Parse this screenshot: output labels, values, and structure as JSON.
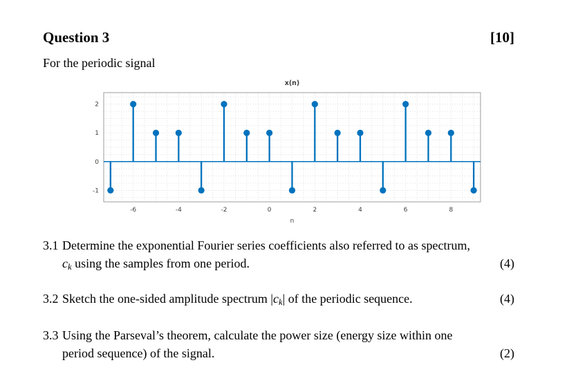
{
  "page": {
    "question_title": "Question 3",
    "question_marks": "[10]",
    "intro": "For the periodic signal"
  },
  "chart_data": {
    "type": "stem",
    "title": "x(n)",
    "xlabel": "n",
    "ylabel": "",
    "x": [
      -7,
      -6,
      -5,
      -4,
      -3,
      -2,
      -1,
      0,
      1,
      2,
      3,
      4,
      5,
      6,
      7,
      8,
      9
    ],
    "y": [
      -1,
      2,
      1,
      1,
      -1,
      2,
      1,
      1,
      -1,
      2,
      1,
      1,
      -1,
      2,
      1,
      1,
      -1
    ],
    "period": 4,
    "xlim": [
      -7.3,
      9.3
    ],
    "ylim": [
      -1.4,
      2.4
    ],
    "xticks": [
      -6,
      -4,
      -2,
      0,
      2,
      4,
      6,
      8
    ],
    "yticks": [
      -1,
      0,
      1,
      2
    ],
    "grid": "minor dotted grid on",
    "legend": "none",
    "stem_color": "#0072BD",
    "grid_color": "#d9d9d9",
    "box_color": "#9c9c9c"
  },
  "questions": {
    "q31": {
      "num": "3.1",
      "line1": "Determine the exponential Fourier series coefficients also referred to as spectrum,",
      "math_var": "c",
      "math_sub": "k",
      "line2_rest": " using the samples from one period.",
      "marks": "(4)"
    },
    "q32": {
      "num": "3.2",
      "pre": "Sketch the one-sided amplitude spectrum |",
      "math_var": "c",
      "math_sub": "k",
      "post": "| of the periodic sequence.",
      "marks": "(4)"
    },
    "q33": {
      "num": "3.3",
      "line1": "Using the Parseval’s theorem, calculate the power size (energy size within one",
      "line2": "period sequence) of the signal.",
      "marks": "(2)"
    }
  }
}
